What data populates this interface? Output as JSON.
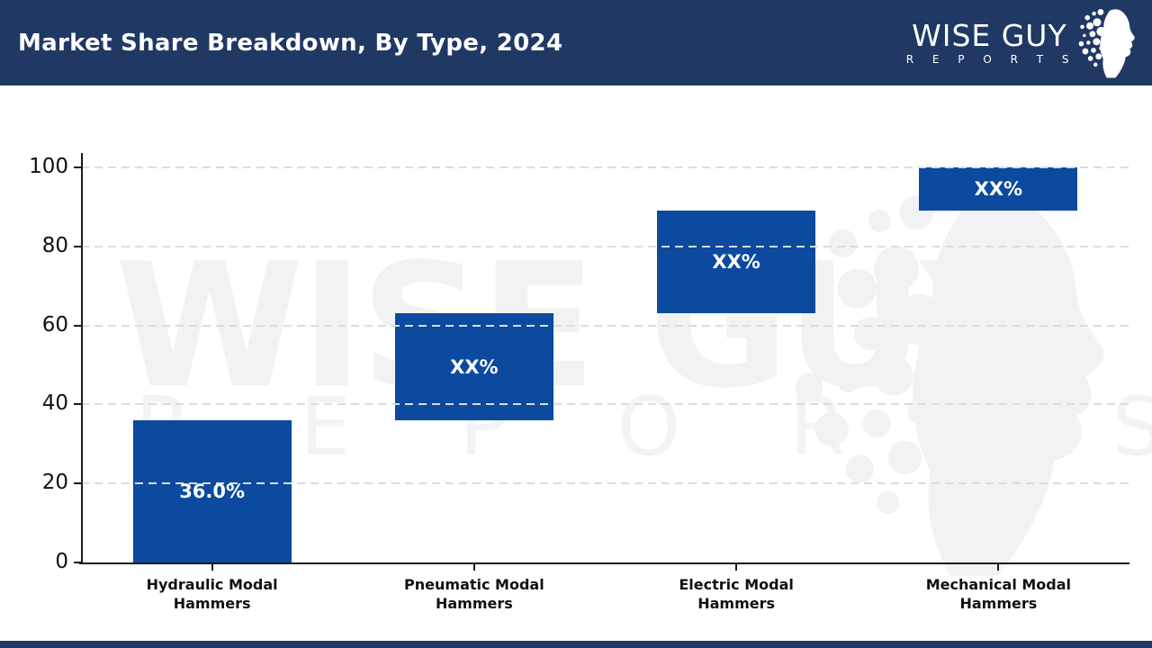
{
  "header": {
    "title": "Market Share Breakdown, By Type, 2024",
    "logo": {
      "line1": "WISE GUY",
      "line2": "R E P O R T S"
    }
  },
  "watermark": {
    "line1": "WISE GUY",
    "line2": "R E P O R T S"
  },
  "footer": {},
  "chart_data": {
    "type": "bar",
    "subtype": "floating-waterfall",
    "title": "Market Share Breakdown, By Type, 2024",
    "categories": [
      "Hydraulic Modal\nHammers",
      "Pneumatic Modal\nHammers",
      "Electric Modal\nHammers",
      "Mechanical Modal\nHammers"
    ],
    "segments": [
      {
        "category": "Hydraulic Modal Hammers",
        "start": 0,
        "end": 36,
        "label": "36.0%"
      },
      {
        "category": "Pneumatic Modal Hammers",
        "start": 36,
        "end": 63,
        "label": "XX%"
      },
      {
        "category": "Electric Modal Hammers",
        "start": 63,
        "end": 89,
        "label": "XX%"
      },
      {
        "category": "Mechanical Modal Hammers",
        "start": 89,
        "end": 100,
        "label": "XX%"
      }
    ],
    "xlabel": "",
    "ylabel": "",
    "ylim": [
      0,
      100
    ],
    "yticks": [
      0,
      20,
      40,
      60,
      80,
      100
    ],
    "grid": {
      "horizontal": true,
      "style": "dashed",
      "color": "#dcdcdc"
    },
    "legend": null,
    "bar_color": "#0b4a9e",
    "bar_label_color": "#ffffff"
  },
  "colors": {
    "header_bg": "#203864",
    "footer_bg": "#203864",
    "bar": "#0b4a9e",
    "axis": "#1a1a1a",
    "watermark": "#f2f2f4"
  }
}
